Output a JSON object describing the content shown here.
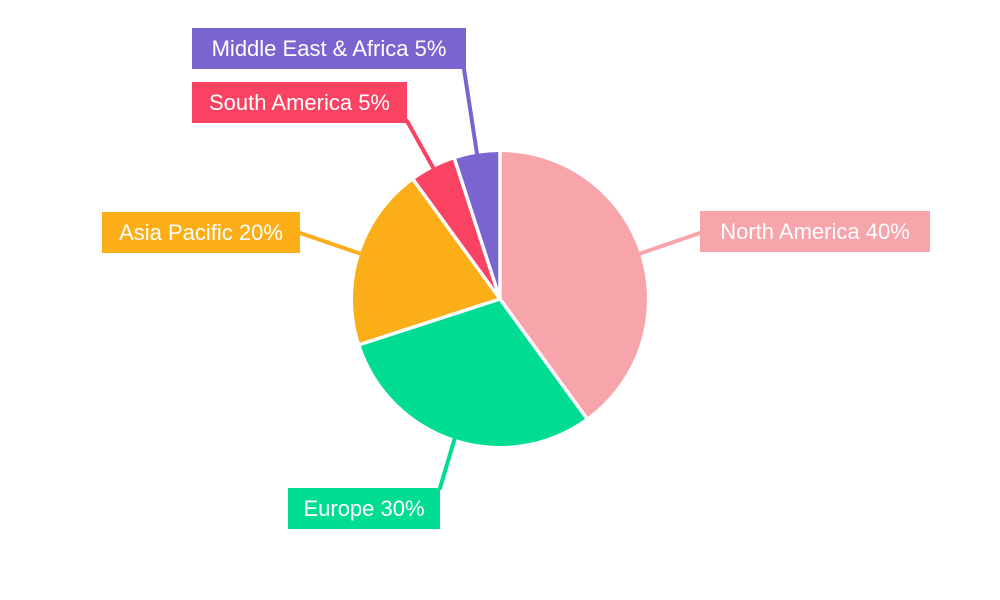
{
  "page": {
    "background_color": "#FFFFFF",
    "label_text_color": "#FFFFFF"
  },
  "chart_data": {
    "type": "pie",
    "title": "",
    "legend": "none",
    "start_angle_deg": 0,
    "direction": "clockwise",
    "unit": "%",
    "categories": [
      "North America",
      "Europe",
      "Asia Pacific",
      "South America",
      "Middle East & Africa"
    ],
    "values": [
      40,
      30,
      20,
      5,
      5
    ],
    "slices": [
      {
        "id": "north-america",
        "label": "North America",
        "value": 40,
        "display": "North America 40%",
        "color": "#F7A4AA"
      },
      {
        "id": "europe",
        "label": "Europe",
        "value": 30,
        "display": "Europe 30%",
        "color": "#00DC92"
      },
      {
        "id": "asia-pacific",
        "label": "Asia Pacific",
        "value": 20,
        "display": "Asia Pacific 20%",
        "color": "#FBAE17"
      },
      {
        "id": "south-america",
        "label": "South America",
        "value": 5,
        "display": "South America 5%",
        "color": "#FA4263"
      },
      {
        "id": "middle-east-africa",
        "label": "Middle East & Africa",
        "value": 5,
        "display": "Middle East & Africa 5%",
        "color": "#7A64D0"
      }
    ]
  }
}
